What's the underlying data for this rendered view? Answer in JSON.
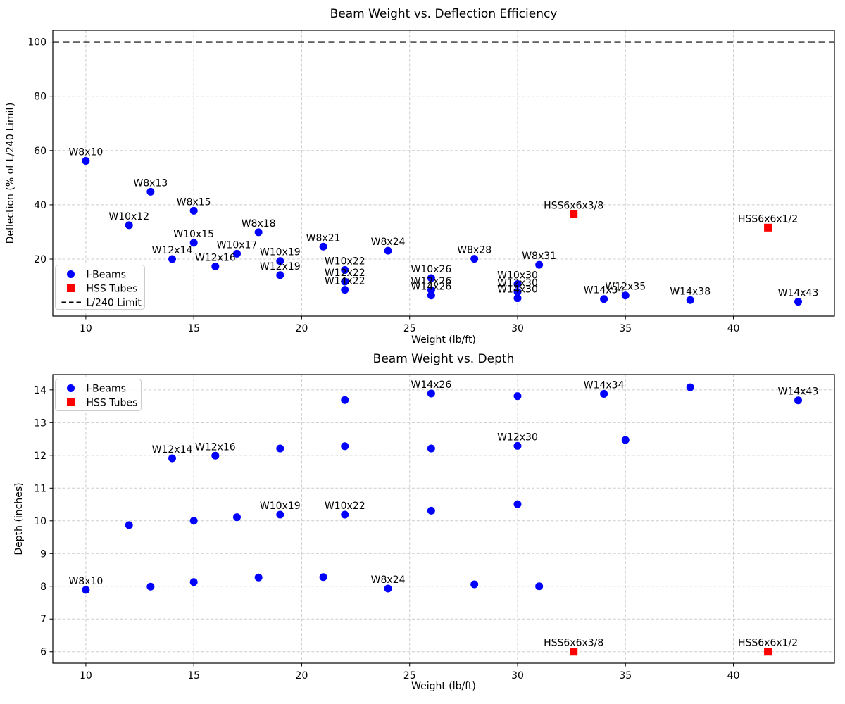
{
  "figure": {
    "background": "#ffffff"
  },
  "chart_data": [
    {
      "type": "scatter",
      "title": "Beam Weight vs. Deflection Efficiency",
      "xlabel": "Weight (lb/ft)",
      "ylabel": "Deflection (% of L/240 Limit)",
      "xlim": [
        8.47,
        44.68
      ],
      "ylim": [
        -1.0,
        104.3
      ],
      "xticks": [
        10,
        15,
        20,
        25,
        30,
        35,
        40
      ],
      "yticks": [
        20,
        40,
        60,
        80,
        100
      ],
      "grid": true,
      "grid_color": "#cccccc",
      "reference_line": {
        "y": 100,
        "color": "#000000",
        "style": "dashed",
        "label": "L/240 Limit"
      },
      "legend": {
        "location": "lower left",
        "entries": [
          {
            "label": "I-Beams",
            "marker": "circle",
            "color": "#0000ff"
          },
          {
            "label": "HSS Tubes",
            "marker": "square",
            "color": "#ff0000"
          },
          {
            "label": "L/240 Limit",
            "marker": "dashed-line",
            "color": "#000000"
          }
        ]
      },
      "series": [
        {
          "name": "I-Beams",
          "marker": "circle",
          "color": "#0000ff",
          "points": [
            {
              "label": "W8x10",
              "x": 10,
              "y": 56.2,
              "annotated": true
            },
            {
              "label": "W8x13",
              "x": 13,
              "y": 44.8,
              "annotated": true
            },
            {
              "label": "W8x15",
              "x": 15,
              "y": 37.8,
              "annotated": true
            },
            {
              "label": "W8x18",
              "x": 18,
              "y": 29.9,
              "annotated": true
            },
            {
              "label": "W8x21",
              "x": 21,
              "y": 24.6,
              "annotated": true
            },
            {
              "label": "W8x24",
              "x": 24,
              "y": 23.1,
              "annotated": true
            },
            {
              "label": "W8x28",
              "x": 28,
              "y": 20.1,
              "annotated": true
            },
            {
              "label": "W8x31",
              "x": 31,
              "y": 17.9,
              "annotated": true
            },
            {
              "label": "W10x12",
              "x": 12,
              "y": 32.5,
              "annotated": true
            },
            {
              "label": "W10x15",
              "x": 15,
              "y": 26.0,
              "annotated": true
            },
            {
              "label": "W10x17",
              "x": 17,
              "y": 22.0,
              "annotated": true
            },
            {
              "label": "W10x19",
              "x": 19,
              "y": 19.3,
              "annotated": true
            },
            {
              "label": "W10x22",
              "x": 22,
              "y": 16.0,
              "annotated": true
            },
            {
              "label": "W10x26",
              "x": 26,
              "y": 13.0,
              "annotated": true
            },
            {
              "label": "W10x30",
              "x": 30,
              "y": 10.8,
              "annotated": true
            },
            {
              "label": "W12x14",
              "x": 14,
              "y": 20.0,
              "annotated": true
            },
            {
              "label": "W12x16",
              "x": 16,
              "y": 17.3,
              "annotated": true
            },
            {
              "label": "W12x19",
              "x": 19,
              "y": 14.1,
              "annotated": true
            },
            {
              "label": "W12x22",
              "x": 22,
              "y": 11.7,
              "annotated": true
            },
            {
              "label": "W12x26",
              "x": 26,
              "y": 8.6,
              "annotated": true
            },
            {
              "label": "W12x30",
              "x": 30,
              "y": 7.9,
              "annotated": true
            },
            {
              "label": "W12x35",
              "x": 35,
              "y": 6.6,
              "annotated": true
            },
            {
              "label": "W14x22",
              "x": 22,
              "y": 8.7,
              "annotated": true
            },
            {
              "label": "W14x26",
              "x": 26,
              "y": 6.6,
              "annotated": true
            },
            {
              "label": "W14x30",
              "x": 30,
              "y": 5.6,
              "annotated": true
            },
            {
              "label": "W14x34",
              "x": 34,
              "y": 5.3,
              "annotated": true
            },
            {
              "label": "W14x38",
              "x": 38,
              "y": 4.9,
              "annotated": true
            },
            {
              "label": "W14x43",
              "x": 43,
              "y": 4.3,
              "annotated": true
            }
          ]
        },
        {
          "name": "HSS Tubes",
          "marker": "square",
          "color": "#ff0000",
          "points": [
            {
              "label": "HSS6x6x3/8",
              "x": 32.6,
              "y": 36.5,
              "annotated": true
            },
            {
              "label": "HSS6x6x1/2",
              "x": 41.6,
              "y": 31.6,
              "annotated": true
            }
          ]
        }
      ]
    },
    {
      "type": "scatter",
      "title": "Beam Weight vs. Depth",
      "xlabel": "Weight (lb/ft)",
      "ylabel": "Depth (inches)",
      "xlim": [
        8.47,
        44.68
      ],
      "ylim": [
        5.65,
        14.47
      ],
      "xticks": [
        10,
        15,
        20,
        25,
        30,
        35,
        40
      ],
      "yticks": [
        6,
        7,
        8,
        9,
        10,
        11,
        12,
        13,
        14
      ],
      "grid": true,
      "grid_color": "#cccccc",
      "legend": {
        "location": "upper left",
        "entries": [
          {
            "label": "I-Beams",
            "marker": "circle",
            "color": "#0000ff"
          },
          {
            "label": "HSS Tubes",
            "marker": "square",
            "color": "#ff0000"
          }
        ]
      },
      "series": [
        {
          "name": "I-Beams",
          "marker": "circle",
          "color": "#0000ff",
          "points": [
            {
              "label": "W8x10",
              "x": 10,
              "y": 7.89,
              "annotated": true
            },
            {
              "label": "W8x13",
              "x": 13,
              "y": 7.99,
              "annotated": false
            },
            {
              "label": "W8x15",
              "x": 15,
              "y": 8.13,
              "annotated": false
            },
            {
              "label": "W8x18",
              "x": 18,
              "y": 8.27,
              "annotated": false
            },
            {
              "label": "W8x21",
              "x": 21,
              "y": 8.28,
              "annotated": false
            },
            {
              "label": "W8x24",
              "x": 24,
              "y": 7.93,
              "annotated": true
            },
            {
              "label": "W8x28",
              "x": 28,
              "y": 8.06,
              "annotated": false
            },
            {
              "label": "W8x31",
              "x": 31,
              "y": 8.0,
              "annotated": false
            },
            {
              "label": "W10x12",
              "x": 12,
              "y": 9.87,
              "annotated": false
            },
            {
              "label": "W10x15",
              "x": 15,
              "y": 10.0,
              "annotated": false
            },
            {
              "label": "W10x17",
              "x": 17,
              "y": 10.11,
              "annotated": false
            },
            {
              "label": "W10x19",
              "x": 19,
              "y": 10.19,
              "annotated": true
            },
            {
              "label": "W10x22",
              "x": 22,
              "y": 10.19,
              "annotated": true
            },
            {
              "label": "W10x26",
              "x": 26,
              "y": 10.31,
              "annotated": false
            },
            {
              "label": "W10x30",
              "x": 30,
              "y": 10.51,
              "annotated": false
            },
            {
              "label": "W12x14",
              "x": 14,
              "y": 11.91,
              "annotated": true
            },
            {
              "label": "W12x16",
              "x": 16,
              "y": 11.99,
              "annotated": true
            },
            {
              "label": "W12x19",
              "x": 19,
              "y": 12.21,
              "annotated": false
            },
            {
              "label": "W12x22",
              "x": 22,
              "y": 12.28,
              "annotated": false
            },
            {
              "label": "W12x26",
              "x": 26,
              "y": 12.21,
              "annotated": false
            },
            {
              "label": "W12x30",
              "x": 30,
              "y": 12.29,
              "annotated": true
            },
            {
              "label": "W12x35",
              "x": 35,
              "y": 12.47,
              "annotated": false
            },
            {
              "label": "W14x22",
              "x": 22,
              "y": 13.69,
              "annotated": false
            },
            {
              "label": "W14x26",
              "x": 26,
              "y": 13.89,
              "annotated": true
            },
            {
              "label": "W14x30",
              "x": 30,
              "y": 13.81,
              "annotated": false
            },
            {
              "label": "W14x34",
              "x": 34,
              "y": 13.88,
              "annotated": true
            },
            {
              "label": "W14x38",
              "x": 38,
              "y": 14.08,
              "annotated": false
            },
            {
              "label": "W14x43",
              "x": 43,
              "y": 13.68,
              "annotated": true
            }
          ]
        },
        {
          "name": "HSS Tubes",
          "marker": "square",
          "color": "#ff0000",
          "points": [
            {
              "label": "HSS6x6x3/8",
              "x": 32.6,
              "y": 6.0,
              "annotated": true
            },
            {
              "label": "HSS6x6x1/2",
              "x": 41.6,
              "y": 6.0,
              "annotated": true
            }
          ]
        }
      ]
    }
  ]
}
